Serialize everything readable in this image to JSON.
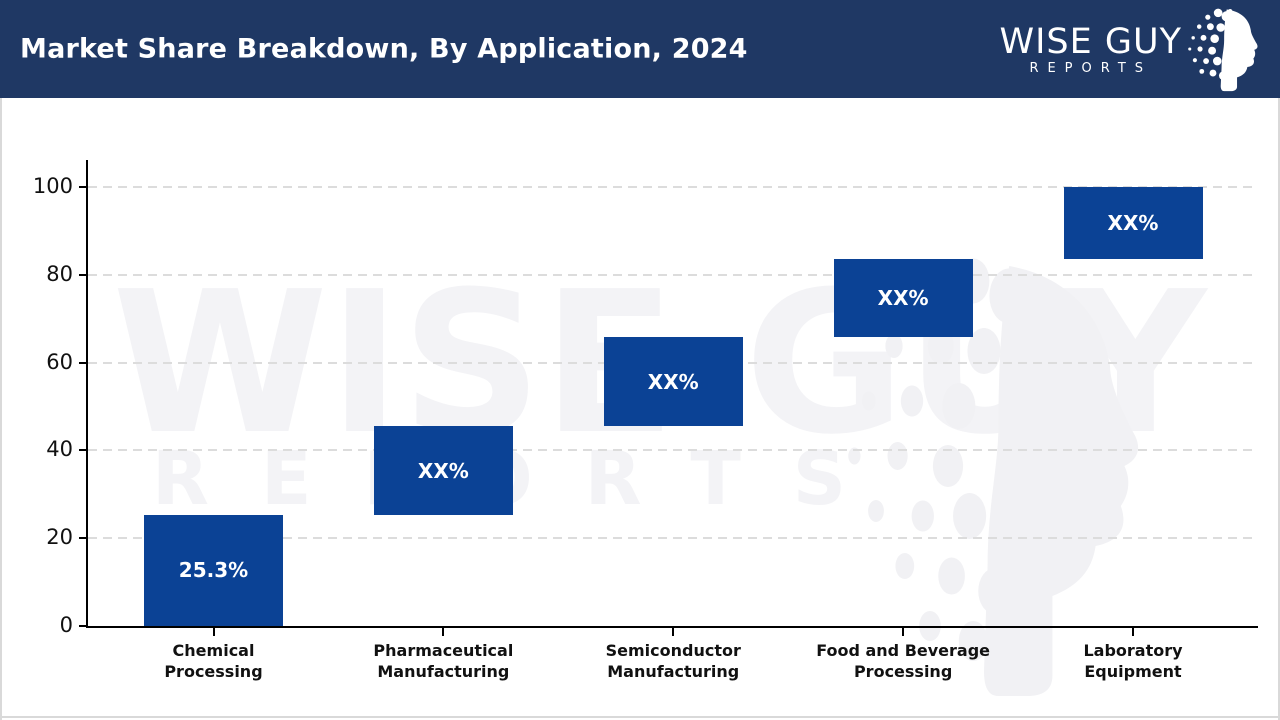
{
  "header": {
    "title": "Market Share Breakdown, By Application, 2024",
    "bg_color": "#1f3864",
    "logo": {
      "line1": "WISE GUY",
      "line2": "REPORTS"
    }
  },
  "watermark": {
    "line1": "WISE GUY",
    "line2": "REPORTS"
  },
  "chart_data": {
    "type": "bar",
    "subtype": "waterfall",
    "title": "Market Share Breakdown, By Application, 2024",
    "categories": [
      "Chemical\nProcessing",
      "Pharmaceutical\nManufacturing",
      "Semiconductor\nManufacturing",
      "Food and Beverage\nProcessing",
      "Laboratory\nEquipment"
    ],
    "segments": [
      {
        "start": 0,
        "end": 25.3,
        "label": "25.3%"
      },
      {
        "start": 25.3,
        "end": 45.5,
        "label": "XX%"
      },
      {
        "start": 45.5,
        "end": 65.8,
        "label": "XX%"
      },
      {
        "start": 65.8,
        "end": 83.6,
        "label": "XX%"
      },
      {
        "start": 83.6,
        "end": 100,
        "label": "XX%"
      }
    ],
    "yticks": [
      0,
      20,
      40,
      60,
      80,
      100
    ],
    "ylim": [
      0,
      106
    ],
    "xlabel": "",
    "ylabel": "",
    "legend": "none",
    "grid": "horizontal-dashed",
    "bar_color": "#0b4295",
    "bar_label_color": "#ffffff",
    "grid_color": "#dcdcdc",
    "axis_color": "#000000"
  }
}
